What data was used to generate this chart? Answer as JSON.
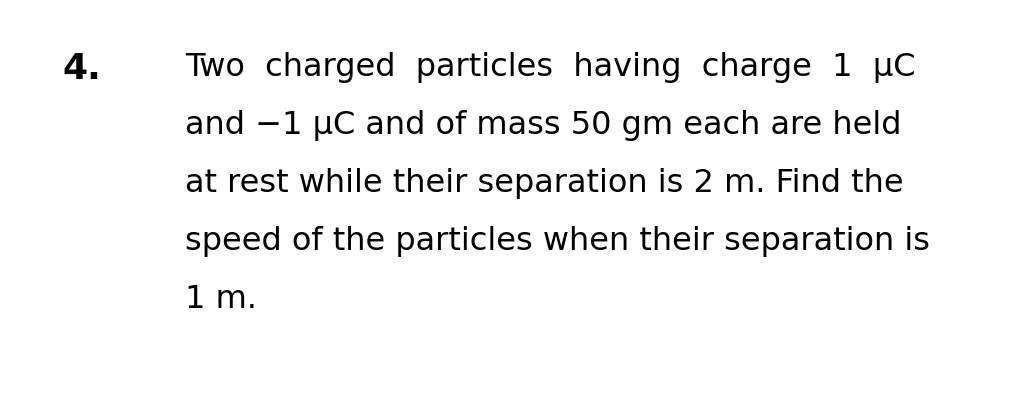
{
  "background_color": "#ffffff",
  "number": "4.",
  "number_fontsize": 26,
  "number_fontweight": "bold",
  "text_lines": [
    "Two  charged  particles  having  charge  1  μC",
    "and −1 μC and of mass 50 gm each are held",
    "at rest while their separation is 2 m. Find the",
    "speed of the particles when their separation is",
    "1 m."
  ],
  "text_fontsize": 23,
  "text_color": "#000000",
  "font_family": "DejaVu Sans",
  "fig_width": 10.24,
  "fig_height": 3.93,
  "dpi": 100
}
